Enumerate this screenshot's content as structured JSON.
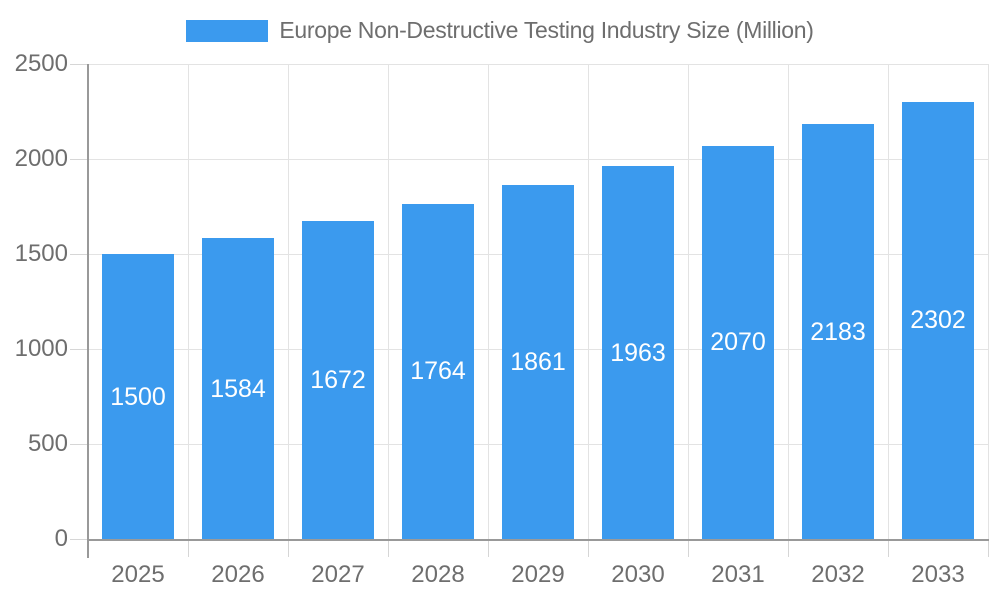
{
  "legend": {
    "label": "Europe Non-Destructive Testing Industry Size (Million)"
  },
  "chart_data": {
    "type": "bar",
    "title": "Europe Non-Destructive Testing Industry Size (Million)",
    "categories": [
      "2025",
      "2026",
      "2027",
      "2028",
      "2029",
      "2030",
      "2031",
      "2032",
      "2033"
    ],
    "values": [
      1500,
      1584,
      1672,
      1764,
      1861,
      1963,
      2070,
      2183,
      2302
    ],
    "xlabel": "",
    "ylabel": "",
    "ylim": [
      0,
      2500
    ],
    "yticks": [
      0,
      500,
      1000,
      1500,
      2000,
      2500
    ],
    "grid": true,
    "legend_position": "top",
    "bar_label_position": "inside-center",
    "colors": {
      "bar": "#3B9AEE",
      "bar_label": "#FFFFFF",
      "grid_line": "#E3E3E3",
      "tick_line": "#D6D6D6",
      "axis_line": "#999999",
      "axis_text": "#6E6E6E",
      "legend_text": "#6E6E6E",
      "background": "#FFFFFF"
    }
  }
}
